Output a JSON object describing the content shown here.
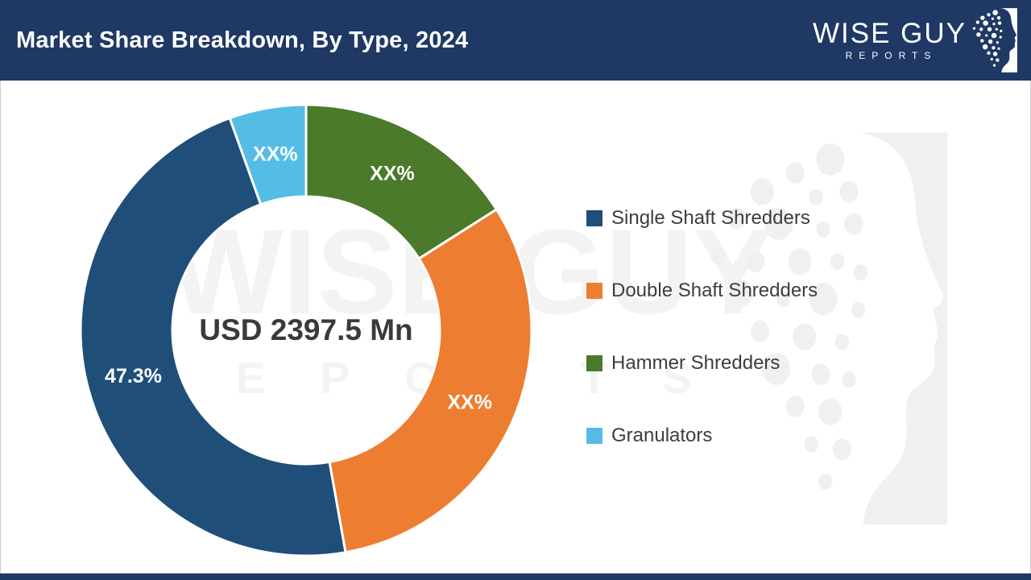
{
  "header": {
    "title": "Market Share Breakdown, By Type, 2024",
    "logo": {
      "line1": "WISE GUY",
      "line2": "REPORTS"
    }
  },
  "watermark": {
    "line1": "WISE GUY",
    "line2": "REPORTS"
  },
  "chart_data": {
    "type": "pie",
    "variant": "donut",
    "title": "Market Share Breakdown, By Type, 2024",
    "center_label": "USD 2397.5 Mn",
    "legend_position": "right",
    "slices": [
      {
        "name": "Single Shaft Shredders",
        "display_label": "47.3%",
        "value_pct": 47.3,
        "color": "#1f4e79"
      },
      {
        "name": "Double Shaft Shredders",
        "display_label": "XX%",
        "value_pct": 31.2,
        "color": "#ed7d31"
      },
      {
        "name": "Hammer Shredders",
        "display_label": "XX%",
        "value_pct": 16.0,
        "color": "#4a7a2a"
      },
      {
        "name": "Granulators",
        "display_label": "XX%",
        "value_pct": 5.5,
        "color": "#55bde5"
      }
    ],
    "draw_order_from_top_clockwise": [
      "Hammer Shredders",
      "Double Shaft Shredders",
      "Single Shaft Shredders",
      "Granulators"
    ]
  },
  "colors": {
    "header_bar": "#1f3864",
    "footer_bar": "#1f3864",
    "page_bg": "#ffffff",
    "slice_label_text": "#ffffff",
    "center_label_text": "#3a3a3a",
    "legend_text": "#3d3d3d",
    "watermark": "#f3f3f3",
    "content_border": "#cfcfcf"
  }
}
